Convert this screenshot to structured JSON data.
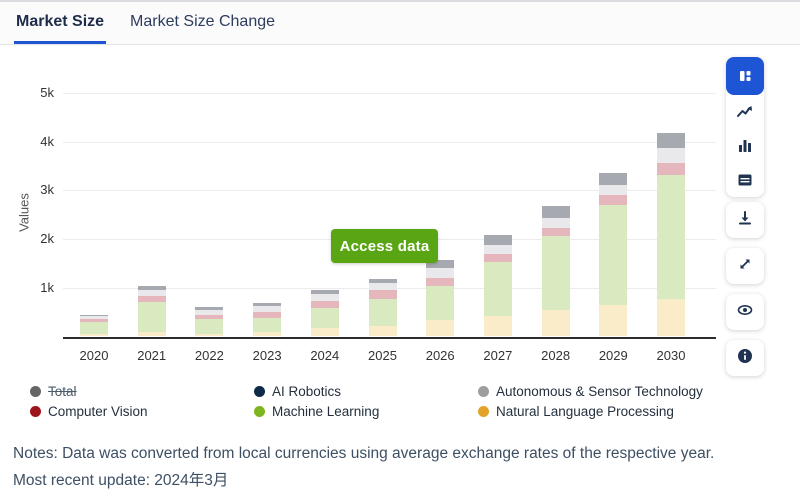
{
  "tabs": {
    "market_size": "Market Size",
    "market_size_change": "Market Size Change"
  },
  "chart_data": {
    "type": "bar",
    "stacked": true,
    "title": "",
    "xlabel": "",
    "ylabel": "Values",
    "categories": [
      "2020",
      "2021",
      "2022",
      "2023",
      "2024",
      "2025",
      "2026",
      "2027",
      "2028",
      "2029",
      "2030"
    ],
    "ylim": [
      0,
      5000
    ],
    "grid": true,
    "legend_position": "bottom",
    "yticks": [
      {
        "label": "1k",
        "value": 1000
      },
      {
        "label": "2k",
        "value": 2000
      },
      {
        "label": "3k",
        "value": 3000
      },
      {
        "label": "4k",
        "value": 4000
      },
      {
        "label": "5k",
        "value": 5000
      }
    ],
    "series": [
      {
        "name": "Natural Language Processing",
        "bar_color": "#faecc8",
        "values": [
          60,
          100,
          55,
          90,
          165,
          225,
          330,
          430,
          535,
          640,
          780
        ]
      },
      {
        "name": "Machine Learning",
        "bar_color": "#daeac0",
        "values": [
          240,
          600,
          310,
          300,
          430,
          555,
          700,
          1090,
          1520,
          2055,
          2530
        ]
      },
      {
        "name": "Computer Vision",
        "bar_color": "#e5b7bd",
        "values": [
          55,
          125,
          85,
          105,
          125,
          165,
          165,
          165,
          165,
          205,
          245
        ]
      },
      {
        "name": "Autonomous & Sensor Technology",
        "bar_color": "#e9e9eb",
        "values": [
          60,
          125,
          100,
          125,
          145,
          145,
          205,
          185,
          205,
          205,
          310
        ]
      },
      {
        "name": "AI Robotics",
        "bar_color": "#a7a9b0",
        "values": [
          35,
          80,
          60,
          70,
          80,
          100,
          165,
          205,
          245,
          245,
          310
        ]
      }
    ]
  },
  "legend": {
    "items": [
      {
        "label": "Total",
        "color": "#666666",
        "disabled": true
      },
      {
        "label": "AI Robotics",
        "color": "#0e2a47",
        "disabled": false
      },
      {
        "label": "Autonomous & Sensor Technology",
        "color": "#9e9e9e",
        "disabled": false
      },
      {
        "label": "Computer Vision",
        "color": "#9e141c",
        "disabled": false
      },
      {
        "label": "Machine Learning",
        "color": "#7cb51f",
        "disabled": false
      },
      {
        "label": "Natural Language Processing",
        "color": "#e3a32b",
        "disabled": false
      }
    ]
  },
  "access_button": {
    "label": "Access data",
    "color": "#59a513"
  },
  "sidebar": {
    "buttons": [
      {
        "icon": "grid-icon",
        "active": true
      },
      {
        "icon": "line-chart-icon",
        "active": false
      },
      {
        "icon": "bar-chart-icon",
        "active": false
      },
      {
        "icon": "table-icon",
        "active": false
      }
    ],
    "tools": [
      {
        "icon": "download-icon"
      },
      {
        "icon": "expand-icon"
      },
      {
        "icon": "eye-icon"
      },
      {
        "icon": "info-icon"
      }
    ]
  },
  "notes": {
    "line1": "Notes: Data was converted from local currencies using average exchange rates of the respective year.",
    "line2": "Most recent update: 2024年3月"
  }
}
